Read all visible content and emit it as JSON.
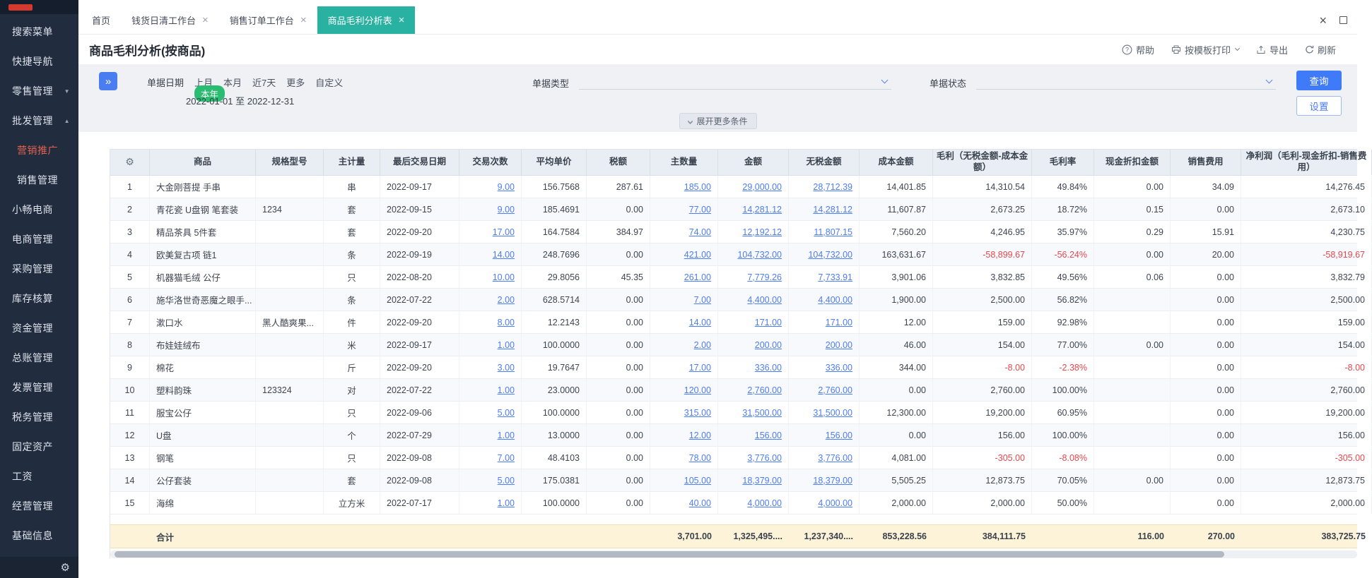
{
  "colors": {
    "accent_teal": "#29b2a2",
    "accent_blue": "#3f7bf8",
    "accent_green": "#2abd71",
    "negative_red": "#e5484d",
    "link_blue": "#4d7df2",
    "sidebar_bg": "#212c3e",
    "total_row_bg": "#fcf3d9"
  },
  "sidebar": {
    "items": [
      {
        "label": "搜索菜单"
      },
      {
        "label": "快捷导航"
      },
      {
        "label": "零售管理",
        "arrow": "down"
      },
      {
        "label": "批发管理",
        "arrow": "up"
      },
      {
        "label": "营销推广",
        "sub": true,
        "accent": true
      },
      {
        "label": "销售管理",
        "sub": true
      },
      {
        "label": "小畅电商"
      },
      {
        "label": "电商管理"
      },
      {
        "label": "采购管理"
      },
      {
        "label": "库存核算"
      },
      {
        "label": "资金管理"
      },
      {
        "label": "总账管理"
      },
      {
        "label": "发票管理"
      },
      {
        "label": "税务管理"
      },
      {
        "label": "固定资产"
      },
      {
        "label": "工资"
      },
      {
        "label": "经营管理"
      },
      {
        "label": "基础信息"
      }
    ],
    "footer_icon": "gear-icon"
  },
  "tabbar": {
    "tabs": [
      {
        "label": "首页",
        "closable": false,
        "active": false
      },
      {
        "label": "钱货日清工作台",
        "closable": true,
        "active": false
      },
      {
        "label": "销售订单工作台",
        "closable": true,
        "active": false
      },
      {
        "label": "商品毛利分析表",
        "closable": true,
        "active": true
      }
    ]
  },
  "header": {
    "title": "商品毛利分析(按商品)",
    "actions": [
      {
        "name": "help-button",
        "label": "帮助",
        "icon": "help-icon"
      },
      {
        "name": "print-by-template-button",
        "label": "按模板打印",
        "icon": "printer-icon",
        "dropdown": true
      },
      {
        "name": "export-button",
        "label": "导出",
        "icon": "export-icon"
      },
      {
        "name": "refresh-button",
        "label": "刷新",
        "icon": "refresh-icon"
      }
    ]
  },
  "filter": {
    "date_label": "单据日期",
    "date_options": [
      {
        "label": "上月"
      },
      {
        "label": "本月"
      },
      {
        "label": "本年",
        "selected": true
      },
      {
        "label": "近7天"
      },
      {
        "label": "更多"
      },
      {
        "label": "自定义"
      }
    ],
    "date_range": "2022-01-01 至 2022-12-31",
    "doc_type_label": "单据类型",
    "doc_status_label": "单据状态",
    "query_button": "查询",
    "settings_button": "设置",
    "expand_more": "展开更多条件"
  },
  "table": {
    "columns": [
      {
        "key": "idx",
        "label": "",
        "width": 56,
        "align": "center",
        "gear": true
      },
      {
        "key": "product",
        "label": "商品",
        "width": 150,
        "align": "left"
      },
      {
        "key": "spec",
        "label": "规格型号",
        "width": 96,
        "align": "left"
      },
      {
        "key": "unit",
        "label": "主计量",
        "width": 80,
        "align": "center"
      },
      {
        "key": "last_date",
        "label": "最后交易日期",
        "width": 112,
        "align": "left"
      },
      {
        "key": "trans_count",
        "label": "交易次数",
        "width": 88,
        "align": "right",
        "link": true
      },
      {
        "key": "avg_price",
        "label": "平均单价",
        "width": 92,
        "align": "right"
      },
      {
        "key": "tax",
        "label": "税额",
        "width": 90,
        "align": "right"
      },
      {
        "key": "qty",
        "label": "主数量",
        "width": 96,
        "align": "right",
        "link": true
      },
      {
        "key": "amount",
        "label": "金额",
        "width": 100,
        "align": "right",
        "link": true
      },
      {
        "key": "notax_amount",
        "label": "无税金额",
        "width": 100,
        "align": "right",
        "link": true
      },
      {
        "key": "cost",
        "label": "成本金额",
        "width": 104,
        "align": "right"
      },
      {
        "key": "gross_profit",
        "label": "毛利（无税金额-成本金额）",
        "width": 140,
        "align": "right"
      },
      {
        "key": "margin",
        "label": "毛利率",
        "width": 88,
        "align": "right"
      },
      {
        "key": "cash_discount",
        "label": "现金折扣金额",
        "width": 108,
        "align": "right"
      },
      {
        "key": "sales_expense",
        "label": "销售费用",
        "width": 100,
        "align": "right"
      },
      {
        "key": "net_profit",
        "label": "净利润（毛利-现金折扣-销售费用）",
        "width": 185,
        "align": "right"
      }
    ],
    "rows": [
      [
        "1",
        "大金刚菩提 手串",
        "",
        "串",
        "2022-09-17",
        "9.00",
        "156.7568",
        "287.61",
        "185.00",
        "29,000.00",
        "28,712.39",
        "14,401.85",
        "14,310.54",
        "49.84%",
        "0.00",
        "34.09",
        "14,276.45"
      ],
      [
        "2",
        "青花瓷 U盘钢 笔套装",
        "1234",
        "套",
        "2022-09-15",
        "9.00",
        "185.4691",
        "0.00",
        "77.00",
        "14,281.12",
        "14,281.12",
        "11,607.87",
        "2,673.25",
        "18.72%",
        "0.15",
        "0.00",
        "2,673.10"
      ],
      [
        "3",
        "精品茶具 5件套",
        "",
        "套",
        "2022-09-20",
        "17.00",
        "164.7584",
        "384.97",
        "74.00",
        "12,192.12",
        "11,807.15",
        "7,560.20",
        "4,246.95",
        "35.97%",
        "0.29",
        "15.91",
        "4,230.75"
      ],
      [
        "4",
        "欧美复古项 链1",
        "",
        "条",
        "2022-09-19",
        "14.00",
        "248.7696",
        "0.00",
        "421.00",
        "104,732.00",
        "104,732.00",
        "163,631.67",
        "-58,899.67",
        "-56.24%",
        "0.00",
        "20.00",
        "-58,919.67"
      ],
      [
        "5",
        "机器猫毛绒 公仔",
        "",
        "只",
        "2022-08-20",
        "10.00",
        "29.8056",
        "45.35",
        "261.00",
        "7,779.26",
        "7,733.91",
        "3,901.06",
        "3,832.85",
        "49.56%",
        "0.06",
        "0.00",
        "3,832.79"
      ],
      [
        "6",
        "施华洛世奇恶魔之眼手...",
        "",
        "条",
        "2022-07-22",
        "2.00",
        "628.5714",
        "0.00",
        "7.00",
        "4,400.00",
        "4,400.00",
        "1,900.00",
        "2,500.00",
        "56.82%",
        "",
        "0.00",
        "2,500.00"
      ],
      [
        "7",
        "漱口水",
        "黑人酷爽果...",
        "件",
        "2022-09-20",
        "8.00",
        "12.2143",
        "0.00",
        "14.00",
        "171.00",
        "171.00",
        "12.00",
        "159.00",
        "92.98%",
        "",
        "0.00",
        "159.00"
      ],
      [
        "8",
        "布娃娃绒布",
        "",
        "米",
        "2022-09-17",
        "1.00",
        "100.0000",
        "0.00",
        "2.00",
        "200.00",
        "200.00",
        "46.00",
        "154.00",
        "77.00%",
        "0.00",
        "0.00",
        "154.00"
      ],
      [
        "9",
        "棉花",
        "",
        "斤",
        "2022-09-20",
        "3.00",
        "19.7647",
        "0.00",
        "17.00",
        "336.00",
        "336.00",
        "344.00",
        "-8.00",
        "-2.38%",
        "",
        "0.00",
        "-8.00"
      ],
      [
        "10",
        "塑料韵珠",
        "123324",
        "对",
        "2022-07-22",
        "1.00",
        "23.0000",
        "0.00",
        "120.00",
        "2,760.00",
        "2,760.00",
        "0.00",
        "2,760.00",
        "100.00%",
        "",
        "0.00",
        "2,760.00"
      ],
      [
        "11",
        "服宝公仔",
        "",
        "只",
        "2022-09-06",
        "5.00",
        "100.0000",
        "0.00",
        "315.00",
        "31,500.00",
        "31,500.00",
        "12,300.00",
        "19,200.00",
        "60.95%",
        "",
        "0.00",
        "19,200.00"
      ],
      [
        "12",
        "U盘",
        "",
        "个",
        "2022-07-29",
        "1.00",
        "13.0000",
        "0.00",
        "12.00",
        "156.00",
        "156.00",
        "0.00",
        "156.00",
        "100.00%",
        "",
        "0.00",
        "156.00"
      ],
      [
        "13",
        "钢笔",
        "",
        "只",
        "2022-09-08",
        "7.00",
        "48.4103",
        "0.00",
        "78.00",
        "3,776.00",
        "3,776.00",
        "4,081.00",
        "-305.00",
        "-8.08%",
        "",
        "0.00",
        "-305.00"
      ],
      [
        "14",
        "公仔套装",
        "",
        "套",
        "2022-09-08",
        "5.00",
        "175.0381",
        "0.00",
        "105.00",
        "18,379.00",
        "18,379.00",
        "5,505.25",
        "12,873.75",
        "70.05%",
        "0.00",
        "0.00",
        "12,873.75"
      ],
      [
        "15",
        "海绵",
        "",
        "立方米",
        "2022-07-17",
        "1.00",
        "100.0000",
        "0.00",
        "40.00",
        "4,000.00",
        "4,000.00",
        "2,000.00",
        "2,000.00",
        "50.00%",
        "",
        "0.00",
        "2,000.00"
      ]
    ],
    "total": {
      "cells": [
        "",
        "合计",
        "",
        "",
        "",
        "",
        "",
        "",
        "3,701.00",
        "1,325,495....",
        "1,237,340....",
        "853,228.56",
        "384,111.75",
        "",
        "116.00",
        "270.00",
        "383,725.75"
      ]
    }
  }
}
